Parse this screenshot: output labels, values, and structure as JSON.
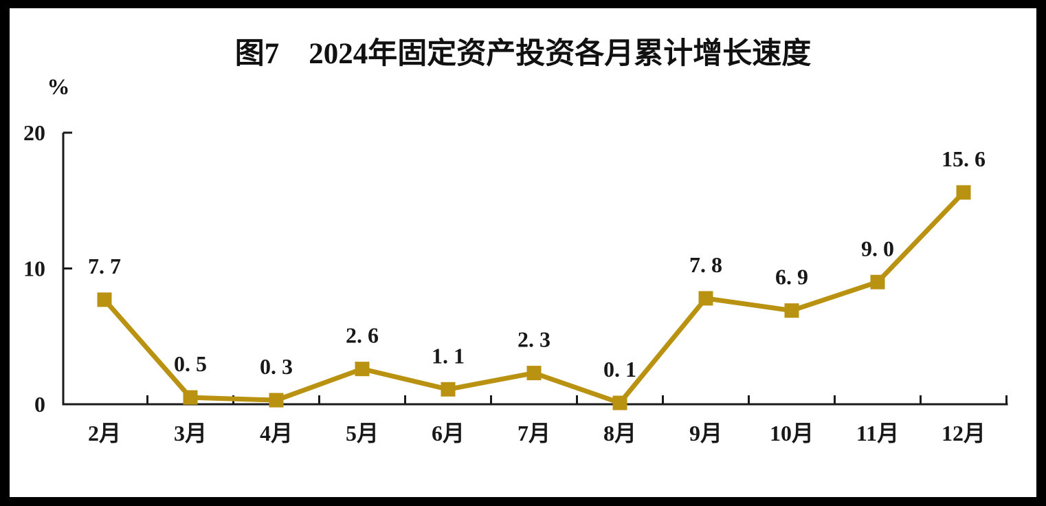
{
  "page": {
    "background_color": "#000000",
    "canvas_color": "#ffffff"
  },
  "chart_data": {
    "type": "line",
    "title": "图7　2024年固定资产投资各月累计增长速度",
    "unit_label": "%",
    "categories": [
      "2月",
      "3月",
      "4月",
      "5月",
      "6月",
      "7月",
      "8月",
      "9月",
      "10月",
      "11月",
      "12月"
    ],
    "values": [
      7.7,
      0.5,
      0.3,
      2.6,
      1.1,
      2.3,
      0.1,
      7.8,
      6.9,
      9.0,
      15.6
    ],
    "point_labels": [
      "7. 7",
      "0. 5",
      "0. 3",
      "2. 6",
      "1. 1",
      "2. 3",
      "0. 1",
      "7. 8",
      "6. 9",
      "9. 0",
      "15. 6"
    ],
    "y_ticks": [
      0,
      10,
      20
    ],
    "y_tick_labels": [
      "0",
      "10",
      "20"
    ],
    "ylim": [
      0,
      20
    ],
    "grid": false,
    "legend_position": "none",
    "line_color": "#BA9212",
    "marker": "square",
    "axis_color": "#1a1a1a",
    "text_color": "#181818"
  }
}
